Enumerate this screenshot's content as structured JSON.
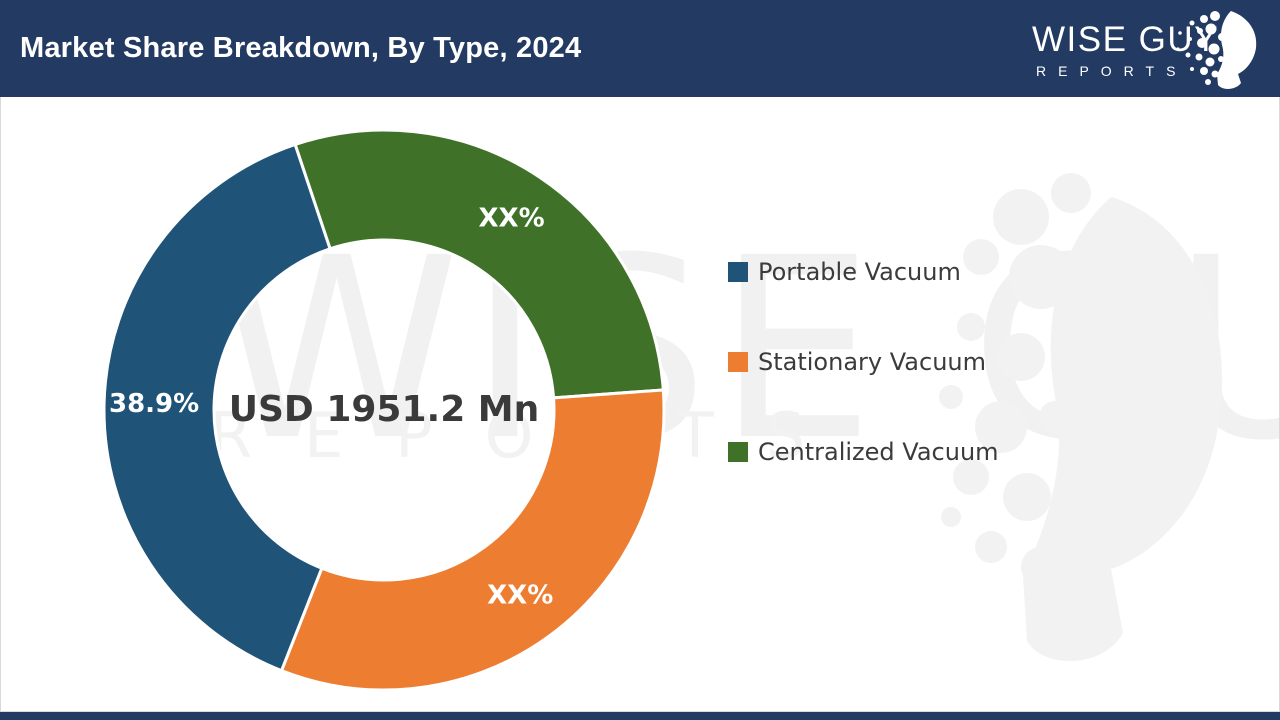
{
  "header": {
    "title": "Market Share Breakdown, By Type, 2024"
  },
  "logo": {
    "line1": "WISE GUY",
    "line2": "REPORTS"
  },
  "watermark": {
    "line1": "WISE GUY",
    "line2": "REPORTS"
  },
  "chart_data": {
    "type": "pie",
    "subtype": "donut",
    "title": "Market Share Breakdown, By Type, 2024",
    "center_label": "USD 1951.2 Mn",
    "start_angle_deg": -18.5,
    "slices": [
      {
        "name": "Centralized Vacuum",
        "label": "XX%",
        "value_pct": 29.0,
        "color": "#3F7228"
      },
      {
        "name": "Stationary Vacuum",
        "label": "XX%",
        "value_pct": 32.1,
        "color": "#ED7D31"
      },
      {
        "name": "Portable Vacuum",
        "label": "38.9%",
        "value_pct": 38.9,
        "color": "#1F5478"
      }
    ],
    "legend": [
      {
        "label": "Portable Vacuum",
        "color": "#1F5478"
      },
      {
        "label": "Stationary Vacuum",
        "color": "#ED7D31"
      },
      {
        "label": "Centralized Vacuum",
        "color": "#3F7228"
      }
    ],
    "legend_position": "right"
  },
  "colors": {
    "header_bg": "#233A63",
    "footer_bg": "#233A63",
    "slice_label_text": "#FFFFFF",
    "center_text": "#3A3A3A",
    "legend_text": "#3B3B3B"
  }
}
